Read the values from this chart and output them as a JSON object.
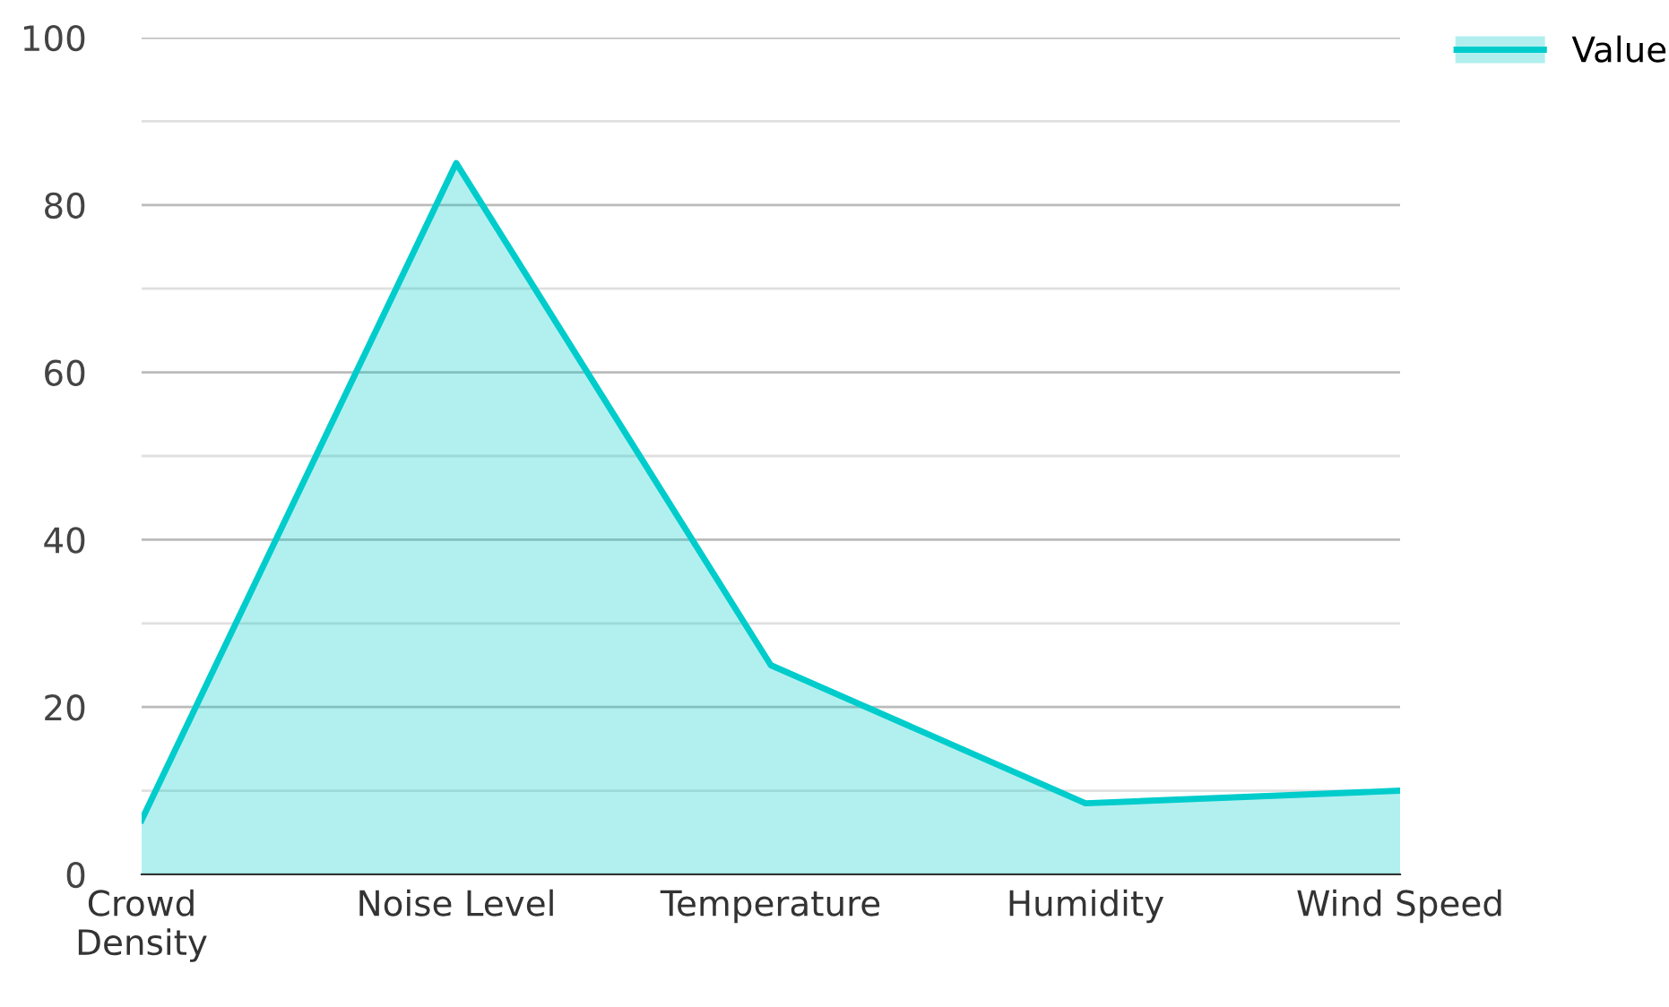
{
  "chart_data": {
    "type": "area",
    "categories": [
      "Crowd\nDensity",
      "Noise Level",
      "Temperature",
      "Humidity",
      "Wind Speed"
    ],
    "series": [
      {
        "name": "Value",
        "color": "#00cccc",
        "values": [
          6.5,
          85,
          25,
          8.5,
          10
        ]
      }
    ],
    "ylim": [
      0,
      100
    ],
    "yticks": [
      0,
      {
        "value": 10,
        "label": null
      },
      20,
      {
        "value": 30,
        "label": null
      },
      40,
      {
        "value": 50,
        "label": null
      },
      60,
      {
        "value": 70,
        "label": null
      },
      80,
      {
        "value": 90,
        "label": null
      },
      100
    ],
    "grid": "y",
    "legend": "top right"
  }
}
